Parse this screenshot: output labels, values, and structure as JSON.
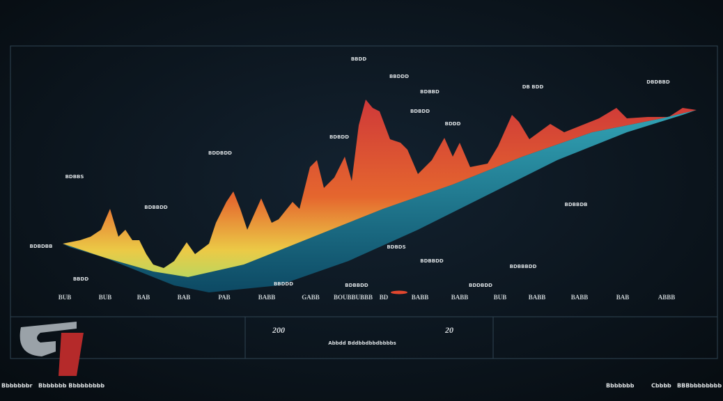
{
  "annotations": [
    "BBDD",
    "BBDDD",
    "BDBBD",
    "DBDBBD",
    "DB BDD",
    "BDBDD",
    "BDDD",
    "BDBDD",
    "BDDBDD",
    "BDBBS",
    "BDBBDD",
    "BDBBDB",
    "BDBDBB",
    "BDBDS",
    "BDBBDD",
    "BDBBBDD",
    "BBDD",
    "BBDDD",
    "BDBBDD",
    "BDDBDD"
  ],
  "axis_labels": [
    "BUB",
    "BUB",
    "BAB",
    "BAB",
    "PAB",
    "BABB",
    "GABB",
    "BOUBBUBBB",
    "BD",
    "BABB",
    "BABB",
    "BUB",
    "BABB",
    "BABB",
    "BAB",
    "ABBB"
  ],
  "axis_numbers": [
    "200",
    "20"
  ],
  "axis_title": "Abbdd Bddbbdbbdbbbbs",
  "footer_left": [
    "Bbbbbbbr",
    "Bbbbbbb Bbbbbbbbb"
  ],
  "footer_right": [
    "Bbbbbbb",
    "Cbbbb",
    "BBBbbbbbbbb"
  ]
}
